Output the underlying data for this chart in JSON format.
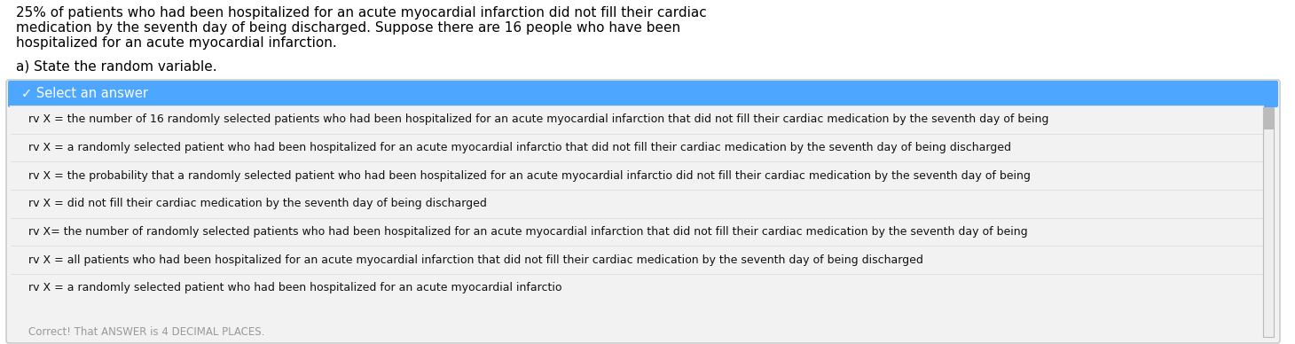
{
  "background_color": "#ffffff",
  "problem_text_lines": [
    "25% of patients who had been hospitalized for an acute myocardial infarction did not fill their cardiac",
    "medication by the seventh day of being discharged. Suppose there are 16 people who have been",
    "hospitalized for an acute myocardial infarction."
  ],
  "question_text": "a) State the random variable.",
  "dropdown_header": "✓ Select an answer",
  "dropdown_header_bg": "#4da6ff",
  "dropdown_header_text_color": "#ffffff",
  "dropdown_bg": "#f2f2f2",
  "dropdown_border_color": "#cccccc",
  "options": [
    "rv X = the number of 16 randomly selected patients who had been hospitalized for an acute myocardial infarction that did not fill their cardiac medication by the seventh day of being",
    "rv X = a randomly selected patient who had been hospitalized for an acute myocardial infarctio that did not fill their cardiac medication by the seventh day of being discharged",
    "rv X = the probability that a randomly selected patient who had been hospitalized for an acute myocardial infarctio did not fill their cardiac medication by the seventh day of being",
    "rv X = did not fill their cardiac medication by the seventh day of being discharged",
    "rv X= the number of randomly selected patients who had been hospitalized for an acute myocardial infarction that did not fill their cardiac medication by the seventh day of being",
    "rv X = all patients who had been hospitalized for an acute myocardial infarction that did not fill their cardiac medication by the seventh day of being discharged",
    "rv X = a randomly selected patient who had been hospitalized for an acute myocardial infarctio"
  ],
  "bottom_text": "Correct! That ANSWER is 4 DECIMAL PLACES.",
  "option_text_color": "#111111",
  "option_bg": "#f2f2f2",
  "scrollbar_track_color": "#e0e0e0",
  "scrollbar_thumb_color": "#bbbbbb",
  "problem_fontsize": 11.0,
  "question_fontsize": 11.0,
  "option_fontsize": 9.0,
  "header_fontsize": 10.5
}
